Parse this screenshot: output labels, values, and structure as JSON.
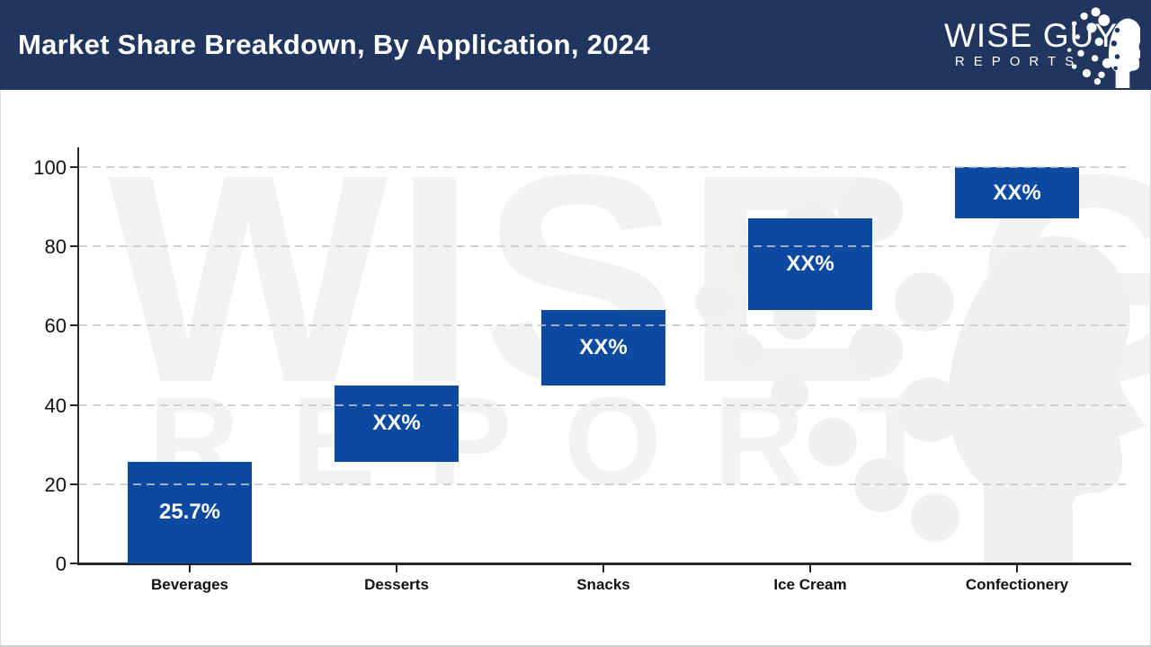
{
  "header": {
    "title": "Market Share Breakdown, By Application, 2024"
  },
  "logo": {
    "line1": "WISE GUY",
    "line2": "REPORTS"
  },
  "watermark": {
    "line1": "WISE GUY",
    "line2": "REPORTS"
  },
  "chart_data": {
    "type": "bar",
    "subtype": "waterfall",
    "title": "Market Share Breakdown, By Application, 2024",
    "categories": [
      "Beverages",
      "Desserts",
      "Snacks",
      "Ice Cream",
      "Confectionery"
    ],
    "segments": [
      {
        "category": "Beverages",
        "start": 0,
        "end": 25.7,
        "label": "25.7%"
      },
      {
        "category": "Desserts",
        "start": 25.7,
        "end": 45,
        "label": "XX%"
      },
      {
        "category": "Snacks",
        "start": 45,
        "end": 64,
        "label": "XX%"
      },
      {
        "category": "Ice Cream",
        "start": 64,
        "end": 87,
        "label": "XX%"
      },
      {
        "category": "Confectionery",
        "start": 87,
        "end": 100,
        "label": "XX%"
      }
    ],
    "yticks": [
      0,
      20,
      40,
      60,
      80,
      100
    ],
    "ytick_labels": [
      "0",
      "20",
      "40",
      "60",
      "80",
      "100"
    ],
    "ylim": [
      0,
      105
    ],
    "xlabel": "",
    "ylabel": "",
    "grid": "horizontal-dashed",
    "legend": "none",
    "bar_color": "#0B4AA0",
    "bar_label_color": "#FFFFFF"
  },
  "colors": {
    "header_bg": "#20365F",
    "bar": "#0B4AA0",
    "axis": "#262626",
    "grid": "#C6C6C6",
    "watermark": "#F2F2F5"
  }
}
